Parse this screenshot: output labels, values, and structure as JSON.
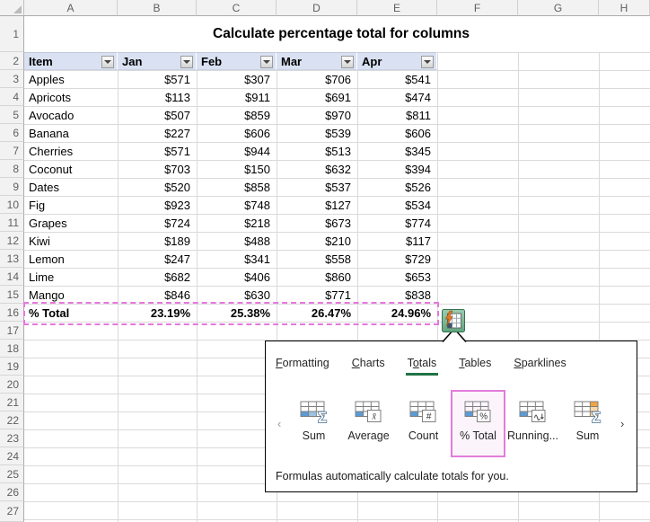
{
  "sheet": {
    "title": "Calculate percentage total for columns",
    "column_headers": [
      "A",
      "B",
      "C",
      "D",
      "E",
      "F",
      "G",
      "H"
    ],
    "row_numbers": [
      1,
      2,
      3,
      4,
      5,
      6,
      7,
      8,
      9,
      10,
      11,
      12,
      13,
      14,
      15,
      16,
      17,
      18,
      19,
      20,
      21,
      22,
      23,
      24,
      25,
      26,
      27
    ]
  },
  "table": {
    "headers": [
      "Item",
      "Jan",
      "Feb",
      "Mar",
      "Apr"
    ],
    "rows": [
      {
        "item": "Apples",
        "values": [
          "$571",
          "$307",
          "$706",
          "$541"
        ]
      },
      {
        "item": "Apricots",
        "values": [
          "$113",
          "$911",
          "$691",
          "$474"
        ]
      },
      {
        "item": "Avocado",
        "values": [
          "$507",
          "$859",
          "$970",
          "$811"
        ]
      },
      {
        "item": "Banana",
        "values": [
          "$227",
          "$606",
          "$539",
          "$606"
        ]
      },
      {
        "item": "Cherries",
        "values": [
          "$571",
          "$944",
          "$513",
          "$345"
        ]
      },
      {
        "item": "Coconut",
        "values": [
          "$703",
          "$150",
          "$632",
          "$394"
        ]
      },
      {
        "item": "Dates",
        "values": [
          "$520",
          "$858",
          "$537",
          "$526"
        ]
      },
      {
        "item": "Fig",
        "values": [
          "$923",
          "$748",
          "$127",
          "$534"
        ]
      },
      {
        "item": "Grapes",
        "values": [
          "$724",
          "$218",
          "$673",
          "$774"
        ]
      },
      {
        "item": "Kiwi",
        "values": [
          "$189",
          "$488",
          "$210",
          "$117"
        ]
      },
      {
        "item": "Lemon",
        "values": [
          "$247",
          "$341",
          "$558",
          "$729"
        ]
      },
      {
        "item": "Lime",
        "values": [
          "$682",
          "$406",
          "$860",
          "$653"
        ]
      },
      {
        "item": "Mango",
        "values": [
          "$846",
          "$630",
          "$771",
          "$838"
        ]
      }
    ],
    "total_row": {
      "label": "% Total",
      "values": [
        "23.19%",
        "25.38%",
        "26.47%",
        "24.96%"
      ]
    }
  },
  "quick_analysis": {
    "tabs": [
      {
        "label": "Formatting",
        "accel_index": 0
      },
      {
        "label": "Charts",
        "accel_index": 0
      },
      {
        "label": "Totals",
        "accel_index": 1
      },
      {
        "label": "Tables",
        "accel_index": 0
      },
      {
        "label": "Sparklines",
        "accel_index": 0
      }
    ],
    "active_tab": "Totals",
    "items": [
      {
        "label": "Sum",
        "icon": "sum-row",
        "selected": false
      },
      {
        "label": "Average",
        "icon": "average",
        "selected": false
      },
      {
        "label": "Count",
        "icon": "count",
        "selected": false
      },
      {
        "label": "% Total",
        "icon": "percent-total",
        "selected": true
      },
      {
        "label": "Running...",
        "icon": "running-total",
        "selected": false
      },
      {
        "label": "Sum",
        "icon": "sum-column",
        "selected": false
      }
    ],
    "nav_left": "‹",
    "nav_right": "›",
    "footer": "Formulas automatically calculate totals for you."
  },
  "colors": {
    "table_header_bg": "#D9E1F2",
    "dashed_selection": "#E678DD",
    "active_tab_underline": "#217346",
    "item_selection": "#E27CDB",
    "accent_blue": "#5B9BD5",
    "accent_orange": "#F2A444"
  }
}
